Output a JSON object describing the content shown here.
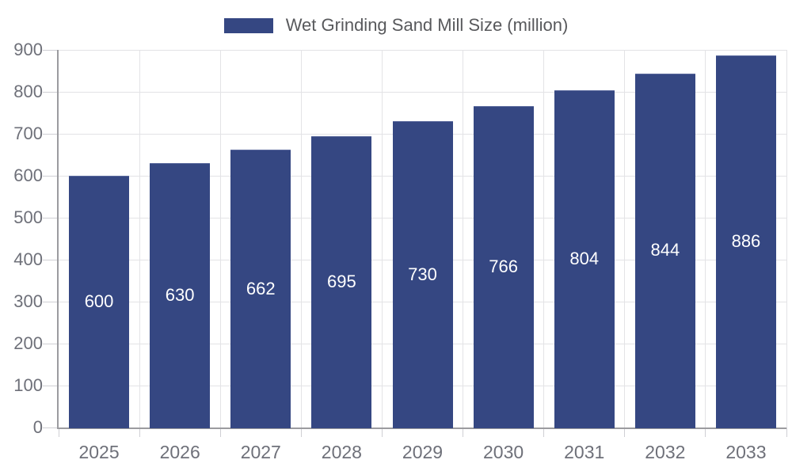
{
  "legend": {
    "label": "Wet Grinding Sand Mill Size (million)",
    "swatch_color": "#354782"
  },
  "chart_data": {
    "type": "bar",
    "title": "Wet Grinding Sand Mill Size (million)",
    "categories": [
      "2025",
      "2026",
      "2027",
      "2028",
      "2029",
      "2030",
      "2031",
      "2032",
      "2033"
    ],
    "values": [
      600,
      630,
      662,
      695,
      730,
      766,
      804,
      844,
      886
    ],
    "xlabel": "",
    "ylabel": "",
    "ylim": [
      0,
      900
    ],
    "yticks": [
      0,
      100,
      200,
      300,
      400,
      500,
      600,
      700,
      800,
      900
    ],
    "grid": true,
    "legend_position": "top-center",
    "bar_color": "#354782",
    "value_label_color": "#ffffff",
    "axis_label_color": "#6E7079",
    "grid_color": "#e3e3e6",
    "axis_line_color": "#9b9b9f"
  }
}
